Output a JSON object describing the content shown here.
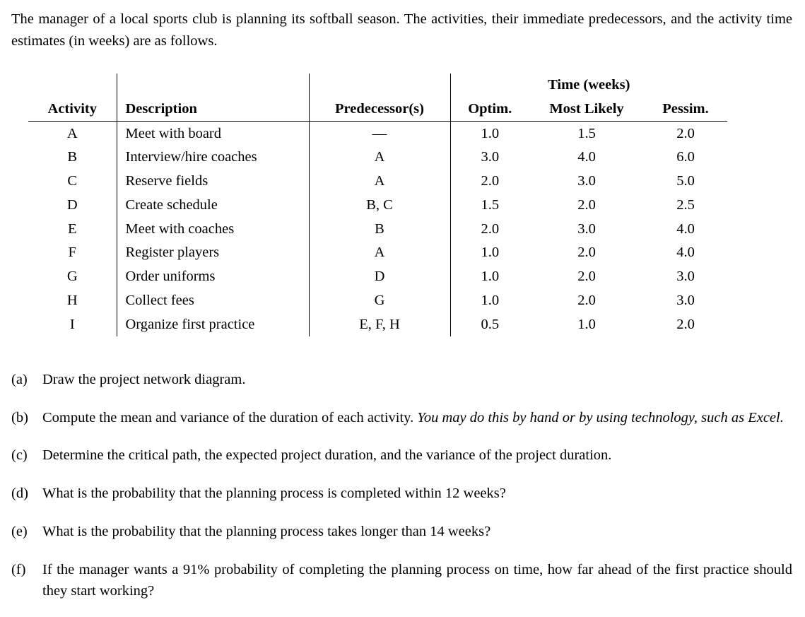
{
  "intro": "The manager of a local sports club is planning its softball season. The activities, their immediate predecessors, and the activity time estimates (in weeks) are as follows.",
  "table": {
    "time_header": "Time (weeks)",
    "headers": [
      "Activity",
      "Description",
      "Predecessor(s)",
      "Optim.",
      "Most Likely",
      "Pessim."
    ],
    "rows": [
      [
        "A",
        "Meet with board",
        "—",
        "1.0",
        "1.5",
        "2.0"
      ],
      [
        "B",
        "Interview/hire coaches",
        "A",
        "3.0",
        "4.0",
        "6.0"
      ],
      [
        "C",
        "Reserve fields",
        "A",
        "2.0",
        "3.0",
        "5.0"
      ],
      [
        "D",
        "Create schedule",
        "B, C",
        "1.5",
        "2.0",
        "2.5"
      ],
      [
        "E",
        "Meet with coaches",
        "B",
        "2.0",
        "3.0",
        "4.0"
      ],
      [
        "F",
        "Register players",
        "A",
        "1.0",
        "2.0",
        "4.0"
      ],
      [
        "G",
        "Order uniforms",
        "D",
        "1.0",
        "2.0",
        "3.0"
      ],
      [
        "H",
        "Collect fees",
        "G",
        "1.0",
        "2.0",
        "3.0"
      ],
      [
        "I",
        "Organize first practice",
        "E, F, H",
        "0.5",
        "1.0",
        "2.0"
      ]
    ]
  },
  "questions": [
    {
      "label": "(a)",
      "text": "Draw the project network diagram."
    },
    {
      "label": "(b)",
      "text": "Compute the mean and variance of the duration of each activity. ",
      "italic": "You may do this by hand or by using technology, such as Excel."
    },
    {
      "label": "(c)",
      "text": "Determine the critical path, the expected project duration, and the variance of the project duration."
    },
    {
      "label": "(d)",
      "text": "What is the probability that the planning process is completed within 12 weeks?"
    },
    {
      "label": "(e)",
      "text": "What is the probability that the planning process takes longer than 14 weeks?"
    },
    {
      "label": "(f)",
      "text": "If the manager wants a 91% probability of completing the planning process on time, how far ahead of the first practice should they start working?"
    }
  ]
}
